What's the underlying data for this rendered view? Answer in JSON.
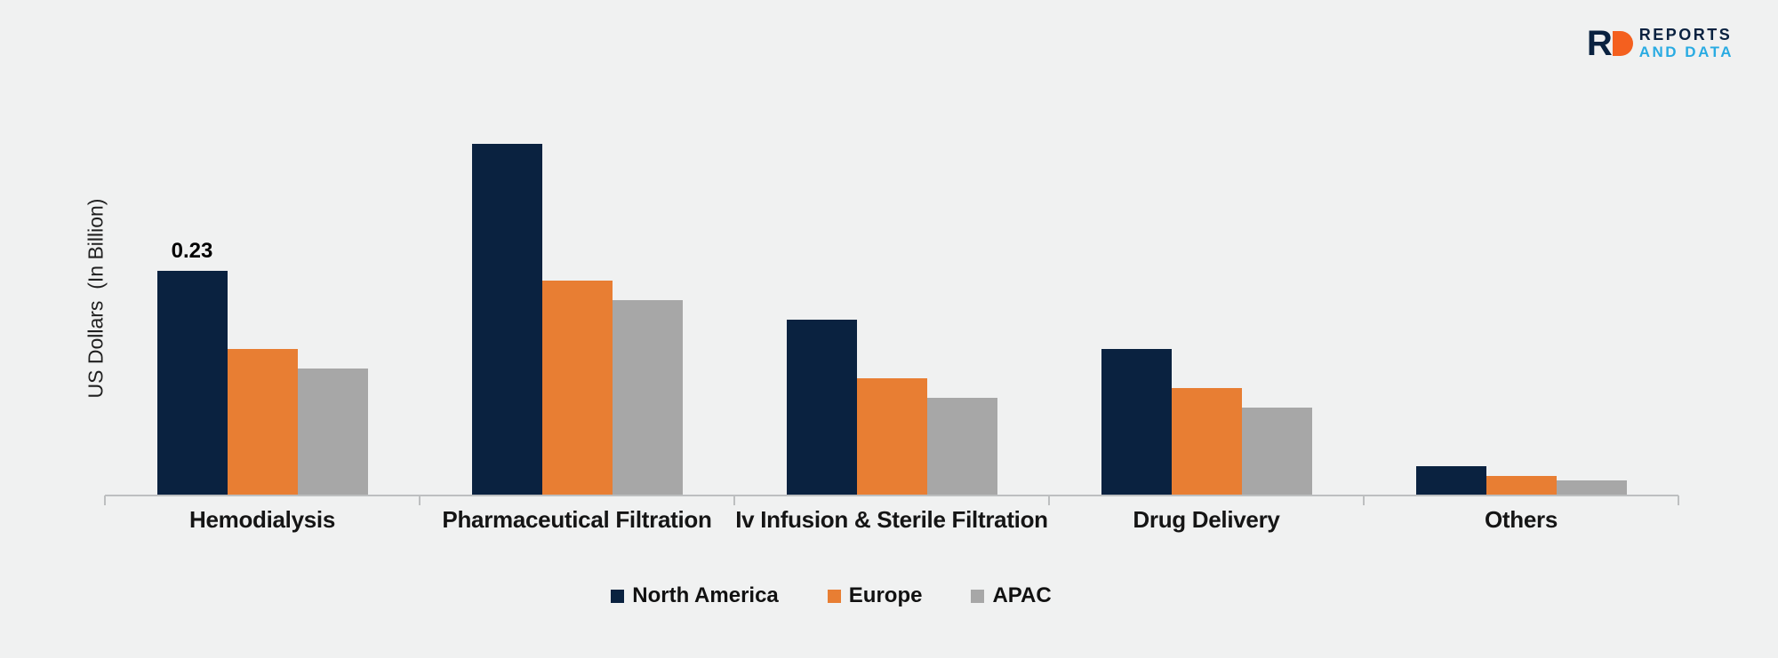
{
  "logo": {
    "mark_r": "R",
    "text_line1": "REPORTS",
    "text_line2": "AND DATA",
    "colors": {
      "navy": "#0a2240",
      "orange": "#f4601f",
      "blue": "#29abe2"
    }
  },
  "chart_data": {
    "type": "bar",
    "title": "",
    "xlabel": "",
    "ylabel": "US Dollars  (In Billion)",
    "categories": [
      "Hemodialysis",
      "Pharmaceutical Filtration",
      "Iv Infusion & Sterile Filtration",
      "Drug Delivery",
      "Others"
    ],
    "series": [
      {
        "name": "North America",
        "color": "#0a2240",
        "values": [
          0.23,
          0.36,
          0.18,
          0.15,
          0.03
        ]
      },
      {
        "name": "Europe",
        "color": "#e87e33",
        "values": [
          0.15,
          0.22,
          0.12,
          0.11,
          0.02
        ]
      },
      {
        "name": "APAC",
        "color": "#a7a7a7",
        "values": [
          0.13,
          0.2,
          0.1,
          0.09,
          0.015
        ]
      }
    ],
    "data_labels": [
      {
        "series": "North America",
        "category": "Hemodialysis",
        "text": "0.23"
      }
    ],
    "ylim": [
      0,
      0.4
    ],
    "grid": false,
    "legend_position": "bottom",
    "axis_color": "#bdbfc0",
    "background": "#f0f1f1",
    "text_color": "#1a1a1a"
  }
}
